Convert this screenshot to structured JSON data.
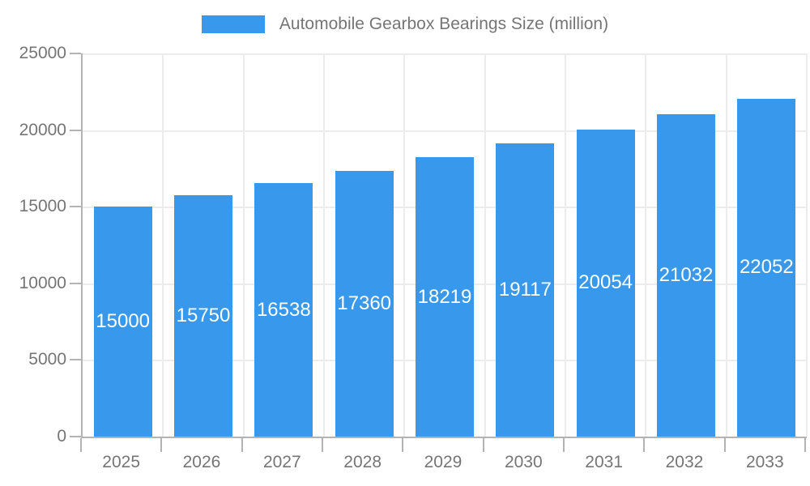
{
  "colors": {
    "bar": "#3898ec",
    "axis_line": "#b3b3b3",
    "gridline": "#ececec",
    "tick_label": "#757575",
    "bar_label": "#ffffff",
    "background": "#ffffff"
  },
  "legend": {
    "label": "Automobile Gearbox Bearings Size (million)",
    "swatch_color": "#3898ec"
  },
  "chart_data": {
    "type": "bar",
    "title": "Automobile Gearbox Bearings Size (million)",
    "series_name": "Automobile Gearbox Bearings Size (million)",
    "categories": [
      "2025",
      "2026",
      "2027",
      "2028",
      "2029",
      "2030",
      "2031",
      "2032",
      "2033"
    ],
    "values": [
      15000,
      15750,
      16538,
      17360,
      18219,
      19117,
      20054,
      21032,
      22052
    ],
    "bar_value_labels": [
      "15000",
      "15750",
      "16538",
      "17360",
      "18219",
      "19117",
      "20054",
      "21032",
      "22052"
    ],
    "xlabel": "",
    "ylabel": "",
    "ylim": [
      0,
      25000
    ],
    "yticks": [
      0,
      5000,
      10000,
      15000,
      20000,
      25000
    ],
    "ytick_labels": [
      "0",
      "5000",
      "10000",
      "15000",
      "20000",
      "25000"
    ],
    "grid": true,
    "legend_position": "top",
    "bar_labels_visible": true,
    "bar_label_position": "center-inside"
  }
}
